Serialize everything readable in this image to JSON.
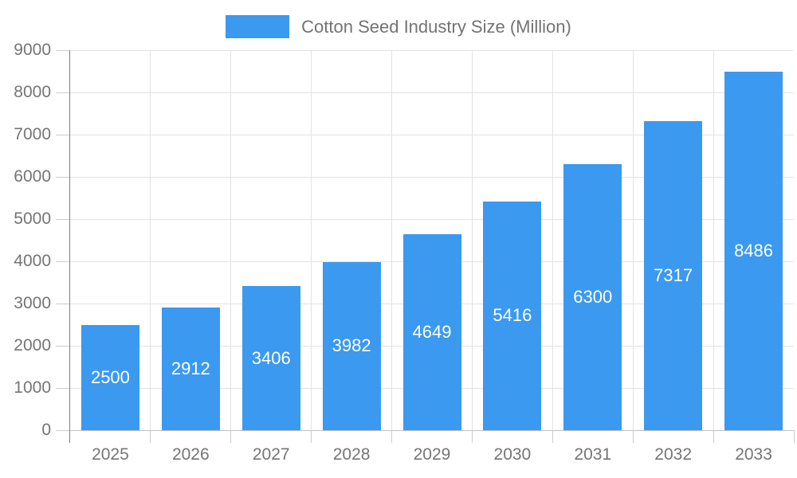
{
  "chart_data": {
    "type": "bar",
    "title": "",
    "legend": "Cotton Seed Industry Size (Million)",
    "legend_position": "top-center",
    "categories": [
      "2025",
      "2026",
      "2027",
      "2028",
      "2029",
      "2030",
      "2031",
      "2032",
      "2033"
    ],
    "series": [
      {
        "name": "Cotton Seed Industry Size (Million)",
        "values": [
          2500,
          2912,
          3406,
          3982,
          4649,
          5416,
          6300,
          7317,
          8486
        ]
      }
    ],
    "bar_value_labels": [
      "2500",
      "2912",
      "3406",
      "3982",
      "4649",
      "5416",
      "6300",
      "7317",
      "8486"
    ],
    "xlabel": "",
    "ylabel": "",
    "ylim": [
      0,
      9000
    ],
    "ytick_step": 1000,
    "ytick_labels": [
      "0",
      "1000",
      "2000",
      "3000",
      "4000",
      "5000",
      "6000",
      "7000",
      "8000",
      "9000"
    ],
    "grid": "horizontal and vertical light-gray gridlines",
    "colors": {
      "bar": "#3B99F0",
      "bar_label": "#FFFFFF",
      "axis_text": "#757575",
      "legend_text": "#737373",
      "gridline": "#E3E3E3",
      "axis_line": "#808080",
      "tick": "#CCCCCC",
      "baseline": "#C2C2C2",
      "background": "#FFFFFF"
    }
  }
}
